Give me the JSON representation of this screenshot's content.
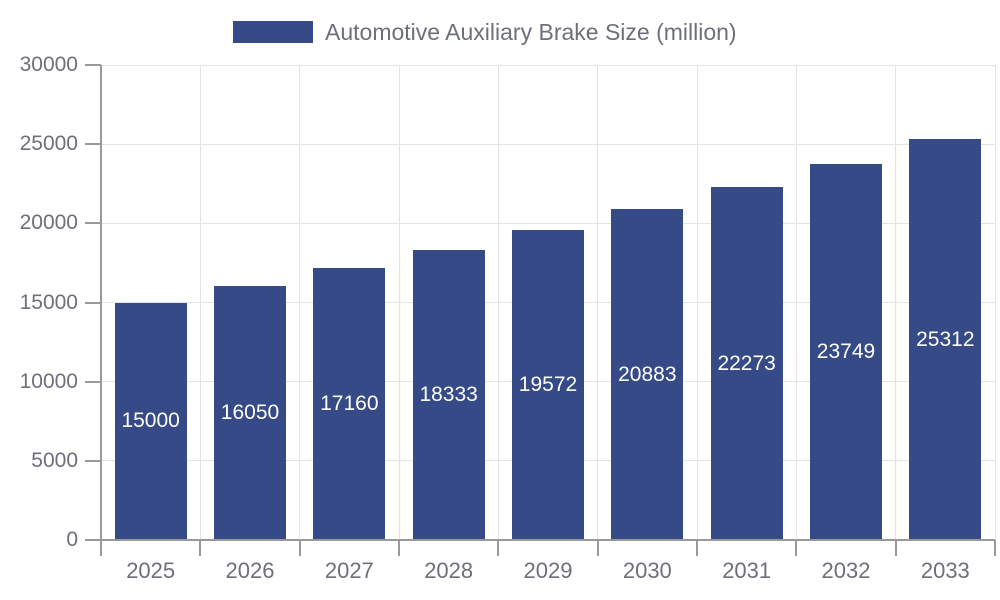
{
  "legend": {
    "label": "Automotive Auxiliary Brake Size (million)"
  },
  "chart_data": {
    "type": "bar",
    "series_name": "Automotive Auxiliary Brake Size (million)",
    "categories": [
      "2025",
      "2026",
      "2027",
      "2028",
      "2029",
      "2030",
      "2031",
      "2032",
      "2033"
    ],
    "values": [
      15000,
      16050,
      17160,
      18333,
      19572,
      20883,
      22273,
      23749,
      25312
    ],
    "xlabel": "",
    "ylabel": "",
    "ylim": [
      0,
      30000
    ],
    "yticks": [
      0,
      5000,
      10000,
      15000,
      20000,
      25000,
      30000
    ],
    "grid": true,
    "legend_position": "top",
    "value_labels": "inside-center",
    "colors": {
      "bar": "#354A87",
      "value_label": "#FFFFFF",
      "axis_text": "#6E7079",
      "axis_line": "#999999",
      "gridline": "#E2E2E8",
      "background": "#FFFFFF"
    }
  }
}
